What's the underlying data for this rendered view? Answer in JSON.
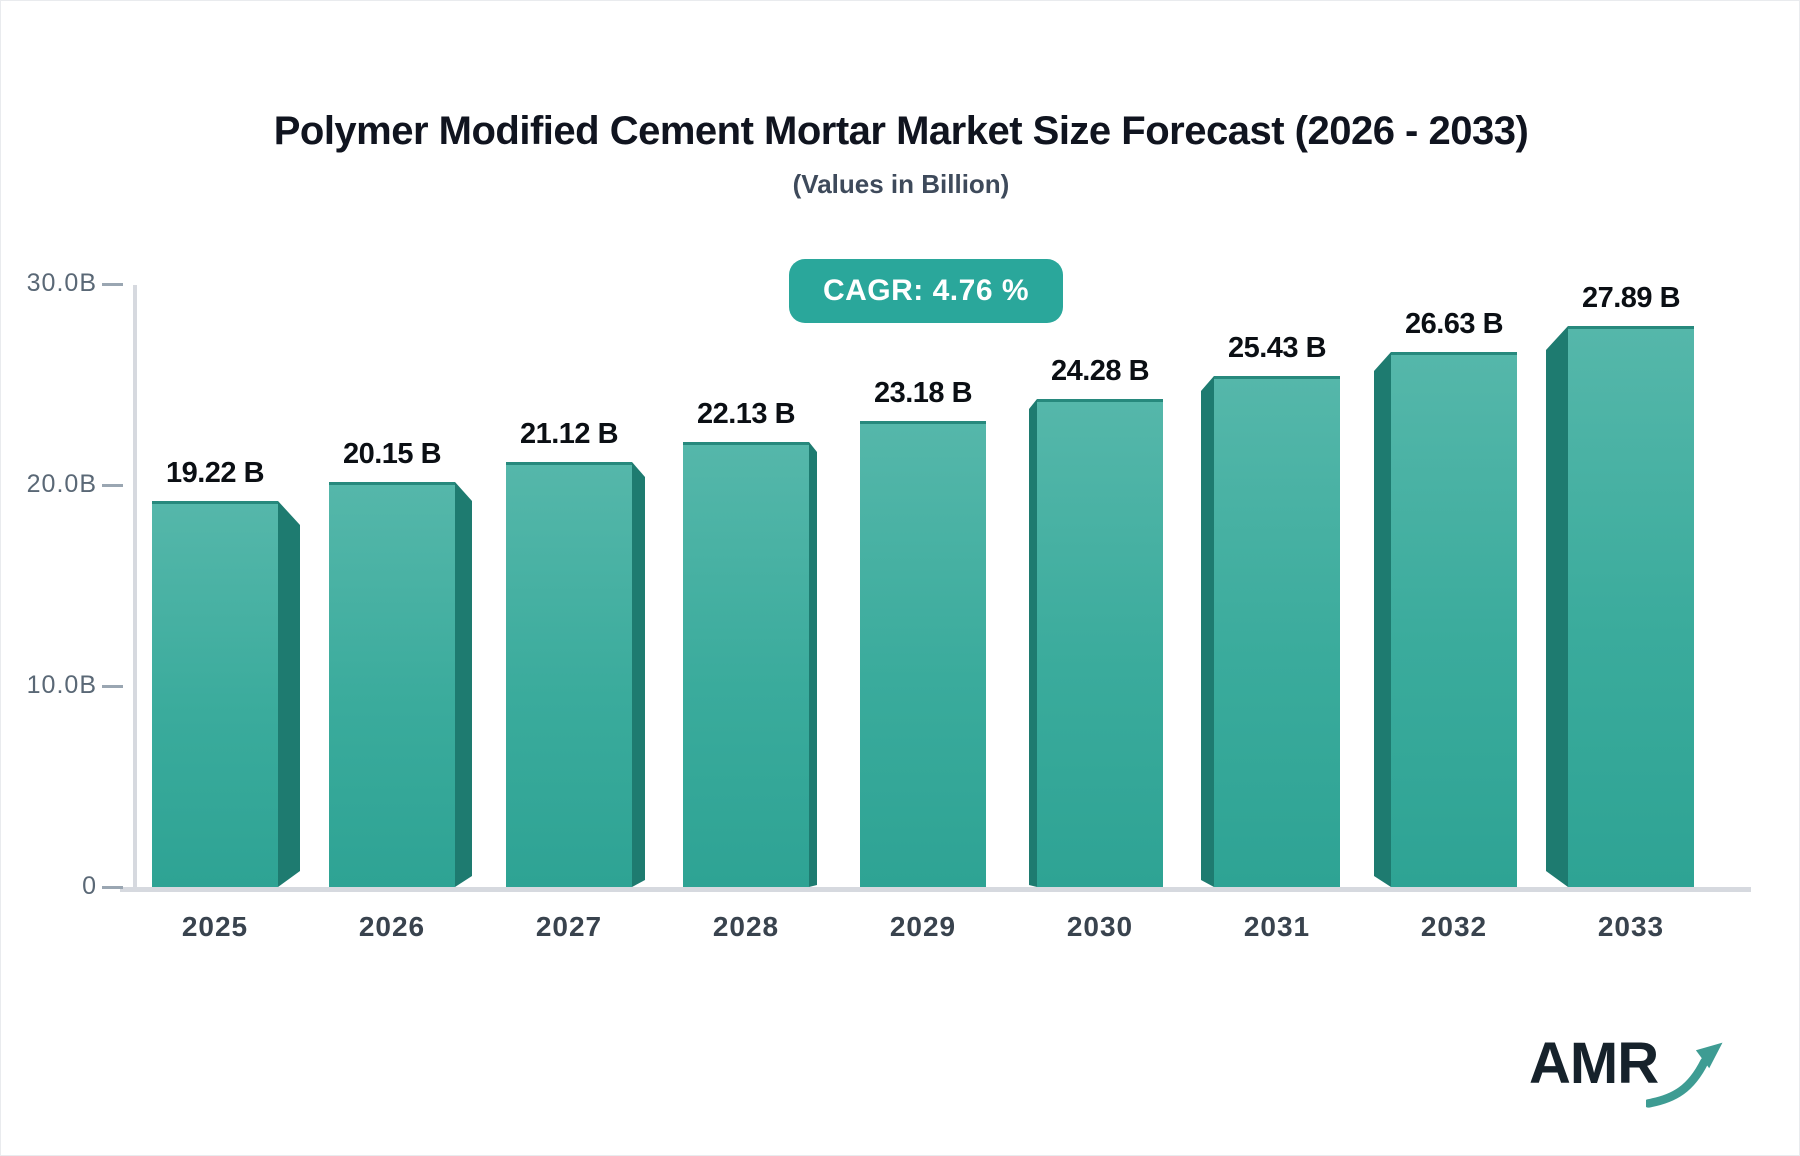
{
  "header": {
    "title": "Polymer Modified Cement Mortar Market Size Forecast (2026 - 2033)",
    "subtitle": "(Values in Billion)",
    "cagr_badge": "CAGR: 4.76 %"
  },
  "chart_data": {
    "type": "bar",
    "title": "Polymer Modified Cement Mortar Market Size Forecast (2026 - 2033)",
    "subtitle": "(Values in Billion)",
    "cagr_text": "CAGR: 4.76 %",
    "categories": [
      "2025",
      "2026",
      "2027",
      "2028",
      "2029",
      "2030",
      "2031",
      "2032",
      "2033"
    ],
    "values": [
      19.22,
      20.15,
      21.12,
      22.13,
      23.18,
      24.28,
      25.43,
      26.63,
      27.89
    ],
    "value_labels": [
      "19.22 B",
      "20.15 B",
      "21.12 B",
      "22.13 B",
      "23.18 B",
      "24.28 B",
      "25.43 B",
      "26.63 B",
      "27.89 B"
    ],
    "xlabel": "",
    "ylabel": "",
    "ylim": [
      0,
      30
    ],
    "yticks": [
      {
        "value": 0,
        "label": "0"
      },
      {
        "value": 10,
        "label": "10.0B"
      },
      {
        "value": 20,
        "label": "20.0B"
      },
      {
        "value": 30,
        "label": "30.0B"
      }
    ],
    "grid": false,
    "legend": "none",
    "colors": {
      "bar_face_top": "#55b7aa",
      "bar_face_bottom": "#2ea394",
      "bar_side": "#1e7b70",
      "bar_top_edge": "#27897d",
      "badge_bg": "#2aa79b",
      "axis": "#d6d9df",
      "tick_text": "#5a6876",
      "year_text": "#39434e",
      "value_text": "#0b0f14"
    }
  },
  "footer": {
    "logo_text": "AMR"
  }
}
